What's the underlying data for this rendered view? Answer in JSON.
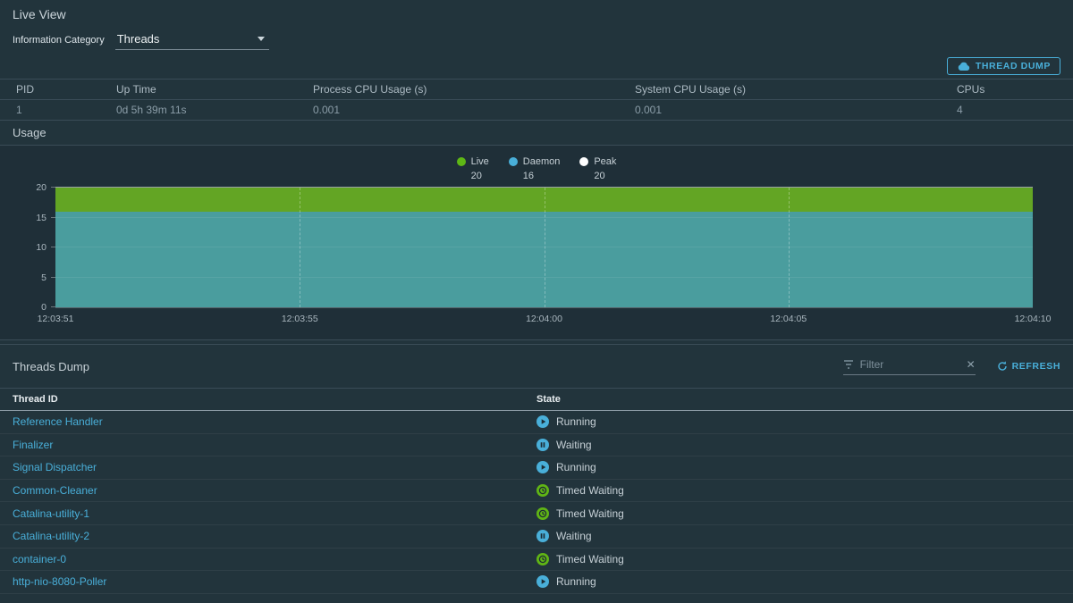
{
  "header": {
    "title": "Live View",
    "category_label": "Information Category",
    "category_value": "Threads"
  },
  "process": {
    "thread_dump_button": "THREAD DUMP",
    "columns": [
      "PID",
      "Up Time",
      "Process CPU Usage (s)",
      "System CPU Usage (s)",
      "CPUs"
    ],
    "rows": [
      [
        "1",
        "0d 5h 39m 11s",
        "0.001",
        "0.001",
        "4"
      ]
    ]
  },
  "usage": {
    "title": "Usage",
    "legend": [
      {
        "label": "Live",
        "value": "20",
        "color": "#5eb715"
      },
      {
        "label": "Daemon",
        "value": "16",
        "color": "#49afd9"
      },
      {
        "label": "Peak",
        "value": "20",
        "color": "#ffffff"
      }
    ]
  },
  "chart_data": {
    "type": "area",
    "x": [
      "12:03:51",
      "12:03:55",
      "12:04:00",
      "12:04:05",
      "12:04:10"
    ],
    "series": [
      {
        "name": "Live",
        "values": [
          20,
          20,
          20,
          20,
          20
        ],
        "color": "#63a524"
      },
      {
        "name": "Daemon",
        "values": [
          16,
          16,
          16,
          16,
          16
        ],
        "color": "#4a9d9e"
      },
      {
        "name": "Peak",
        "values": [
          20,
          20,
          20,
          20,
          20
        ],
        "color": "#ffffff"
      }
    ],
    "ylim": [
      0,
      20
    ],
    "yticks": [
      0,
      5,
      10,
      15,
      20
    ],
    "grid": "dashed-vertical",
    "legend_position": "top-center"
  },
  "threads": {
    "title": "Threads Dump",
    "filter_placeholder": "Filter",
    "clear_label": "✕",
    "refresh_label": "REFRESH",
    "columns": [
      "Thread ID",
      "State"
    ],
    "state_styles": {
      "Running": {
        "color": "#49afd9",
        "icon": "play-icon"
      },
      "Waiting": {
        "color": "#49afd9",
        "icon": "pause-icon"
      },
      "Timed Waiting": {
        "color": "#60b515",
        "icon": "clock-icon"
      }
    },
    "rows": [
      {
        "id": "Reference Handler",
        "state": "Running"
      },
      {
        "id": "Finalizer",
        "state": "Waiting"
      },
      {
        "id": "Signal Dispatcher",
        "state": "Running"
      },
      {
        "id": "Common-Cleaner",
        "state": "Timed Waiting"
      },
      {
        "id": "Catalina-utility-1",
        "state": "Timed Waiting"
      },
      {
        "id": "Catalina-utility-2",
        "state": "Waiting"
      },
      {
        "id": "container-0",
        "state": "Timed Waiting"
      },
      {
        "id": "http-nio-8080-Poller",
        "state": "Running"
      }
    ]
  }
}
